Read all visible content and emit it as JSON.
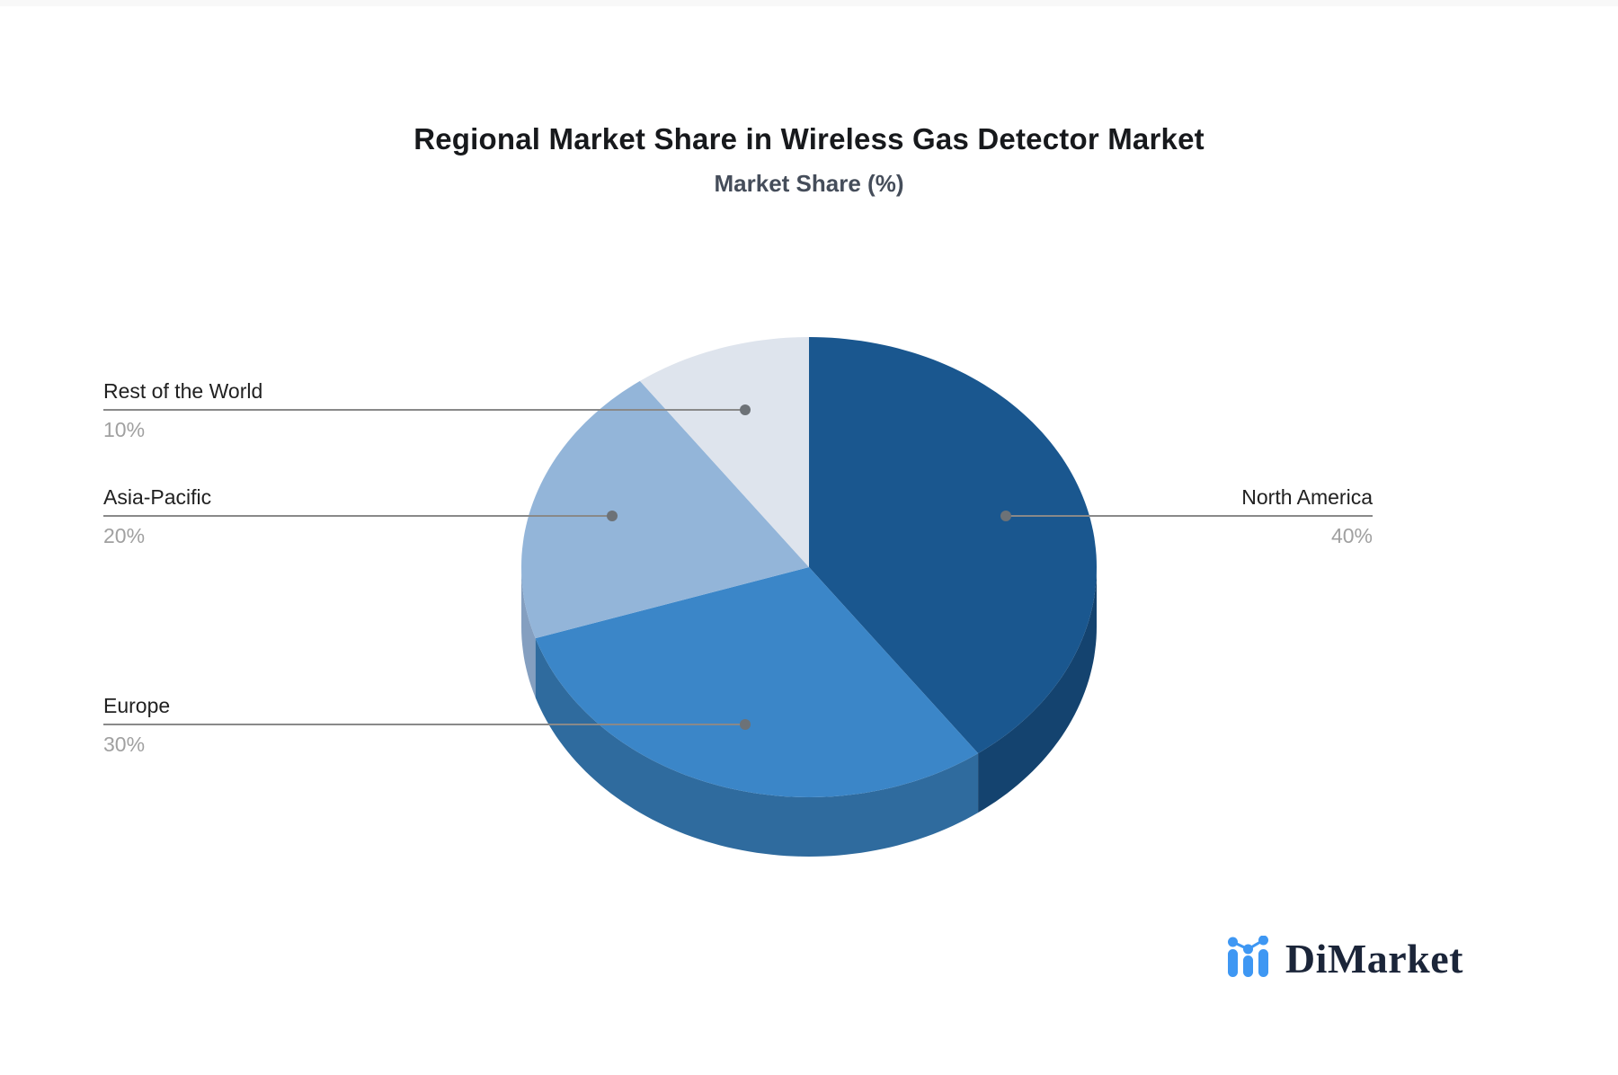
{
  "header": {
    "title": "Regional Market Share in Wireless Gas Detector Market",
    "subtitle": "Market Share (%)"
  },
  "chart_data": {
    "type": "pie",
    "style": "3d",
    "title": "Regional Market Share in Wireless Gas Detector Market",
    "subtitle": "Market Share (%)",
    "unit": "%",
    "start_angle_deg": 90,
    "direction": "clockwise",
    "slices": [
      {
        "label": "North America",
        "value": 40,
        "display": "40%",
        "color": "#1a578f",
        "side_color": "#14436f",
        "label_side": "right"
      },
      {
        "label": "Europe",
        "value": 30,
        "display": "30%",
        "color": "#3b86c8",
        "side_color": "#2f6b9e",
        "label_side": "left"
      },
      {
        "label": "Asia-Pacific",
        "value": 20,
        "display": "20%",
        "color": "#93b5d9",
        "side_color": "#849fc0",
        "label_side": "left"
      },
      {
        "label": "Rest of the World",
        "value": 10,
        "display": "10%",
        "color": "#dee4ed",
        "side_color": "#c6cedd",
        "label_side": "left"
      }
    ],
    "legend_position": "none",
    "grid": false,
    "leader_line_color": "#898989",
    "leader_dot_color": "#6d7277",
    "label_color": "#212121",
    "value_color": "#a0a0a0"
  },
  "branding": {
    "name": "DiMarket",
    "icon": "bar-line-chart-logo",
    "icon_color": "#3e97f3",
    "text_color": "#1b2539"
  }
}
